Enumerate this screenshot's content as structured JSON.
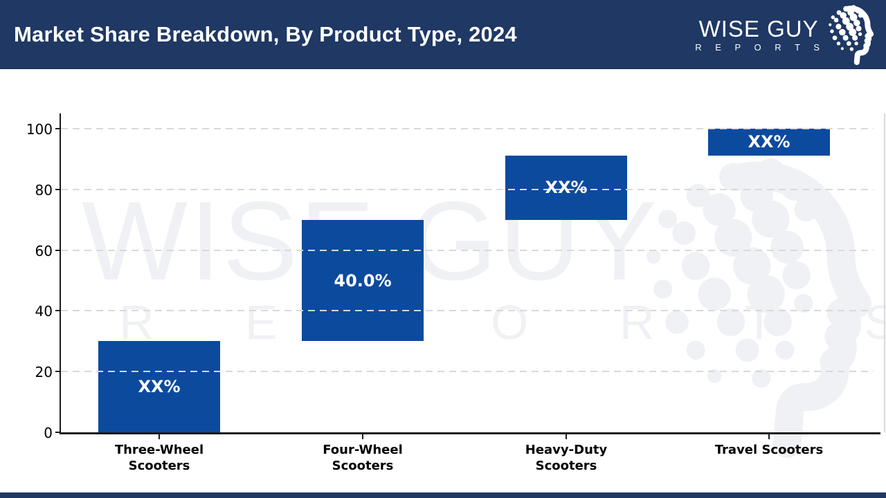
{
  "header": {
    "title": "Market Share Breakdown, By Product Type, 2024",
    "logo": {
      "name": "Wise Guy Reports",
      "line1": "WISE GUY",
      "line2": "R E P O R T S"
    }
  },
  "watermark": {
    "line1": "WISE GUY",
    "line2": "R E P O R T S"
  },
  "colors": {
    "header_bg": "#1f3864",
    "footer_bg": "#1f3864",
    "bar": "#0c4a9e",
    "bar_label_text": "#ffffff",
    "gridline": "#d9d9d9",
    "axis": "#1a1a1a",
    "watermark": "#f0f1f4"
  },
  "chart_data": {
    "type": "bar",
    "variant": "floating-waterfall",
    "title": "Market Share Breakdown, By Product Type, 2024",
    "categories": [
      "Three-Wheel\nScooters",
      "Four-Wheel\nScooters",
      "Heavy-Duty\nScooters",
      "Travel Scooters"
    ],
    "segments": [
      {
        "category": "Three-Wheel Scooters",
        "start": 0,
        "end": 30,
        "value": 30,
        "label": "XX%"
      },
      {
        "category": "Four-Wheel Scooters",
        "start": 30,
        "end": 70,
        "value": 40,
        "label": "40.0%"
      },
      {
        "category": "Heavy-Duty Scooters",
        "start": 70,
        "end": 91.2,
        "value": 21.2,
        "label": "XX%"
      },
      {
        "category": "Travel Scooters",
        "start": 91.2,
        "end": 100,
        "value": 8.8,
        "label": "XX%"
      }
    ],
    "xlabel": "",
    "ylabel": "",
    "yticks": [
      0,
      20,
      40,
      60,
      80,
      100
    ],
    "ylim": [
      0,
      105
    ],
    "grid": {
      "horizontal": true,
      "style": "dashed",
      "color": "#d9d9d9",
      "above_bars": true
    },
    "legend": "none"
  }
}
